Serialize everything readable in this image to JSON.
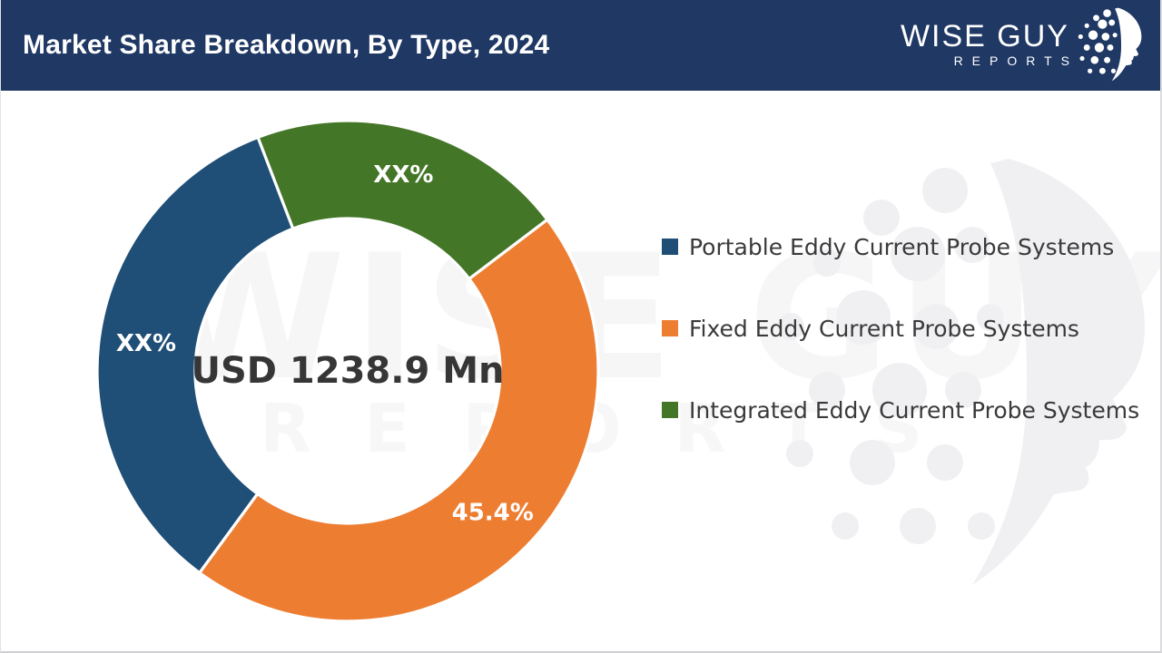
{
  "header": {
    "title": "Market Share Breakdown, By Type, 2024",
    "bg_color": "#1f3864",
    "logo": {
      "line1": "WISE GUY",
      "line2": "REPORTS"
    }
  },
  "watermark": {
    "line1": "WISE GUY",
    "line2": "REPORTS"
  },
  "chart_data": {
    "type": "pie",
    "donut": true,
    "title": "Market Share Breakdown, By Type, 2024",
    "center_label": "USD 1238.9 Mn",
    "inner_radius_ratio": 0.61,
    "start_angle_cw_from_top": 339,
    "legend_position": "right",
    "segments": [
      {
        "name": "Portable Eddy Current Probe Systems",
        "label": "XX%",
        "value_pct": 34.1,
        "color": "#1f4e76"
      },
      {
        "name": "Fixed Eddy Current Probe Systems",
        "label": "45.4%",
        "value_pct": 45.4,
        "color": "#ed7d31"
      },
      {
        "name": "Integrated Eddy Current Probe Systems",
        "label": "XX%",
        "value_pct": 20.5,
        "color": "#447628"
      }
    ]
  }
}
